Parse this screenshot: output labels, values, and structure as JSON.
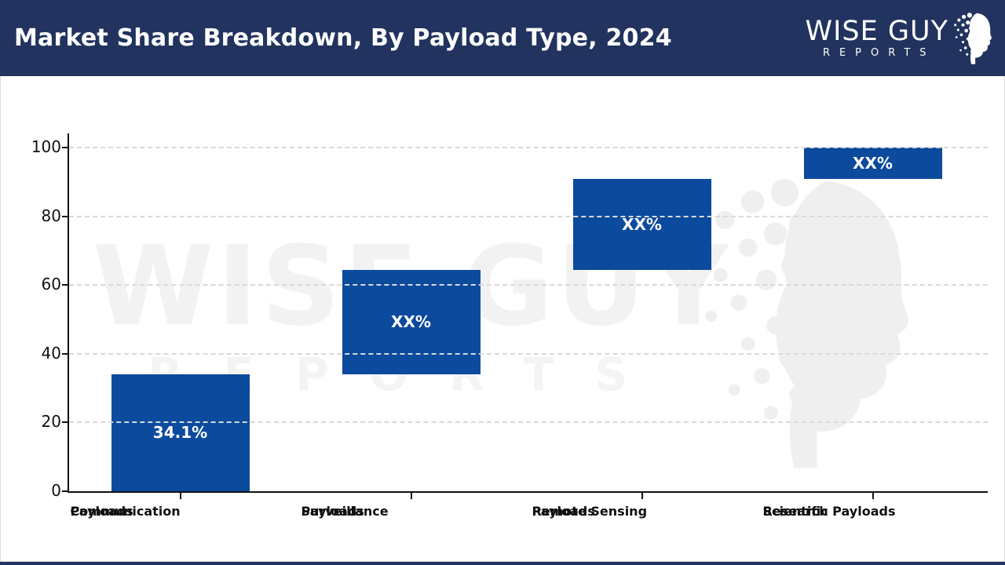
{
  "header": {
    "title": "Market Share Breakdown, By Payload Type, 2024",
    "bg_color": "#21335e",
    "logo": {
      "line1": "WISE GUY",
      "line2": "REPORTS",
      "head_icon": "dotted-face-profile"
    }
  },
  "watermark": {
    "line1": "WISE GUY",
    "line2": "REPORTS"
  },
  "chart_data": {
    "type": "bar",
    "variant": "floating-waterfall",
    "title": "Market Share Breakdown, By Payload Type, 2024",
    "categories": [
      "Communication Payloads",
      "Surveillance Payloads",
      "Remote Sensing Payloads",
      "Scientific Research Payloads"
    ],
    "category_lines": [
      [
        "Communication",
        "Payloads"
      ],
      [
        "Surveillance",
        "Payloads"
      ],
      [
        "Remote Sensing",
        "Payloads"
      ],
      [
        "Scientific",
        "Research Payloads"
      ]
    ],
    "segments": [
      {
        "category": "Communication Payloads",
        "start": 0,
        "end": 34.1,
        "label": "34.1%"
      },
      {
        "category": "Surveillance Payloads",
        "start": 34.1,
        "end": 64.3,
        "label": "XX%"
      },
      {
        "category": "Remote Sensing Payloads",
        "start": 64.3,
        "end": 90.8,
        "label": "XX%"
      },
      {
        "category": "Scientific Research Payloads",
        "start": 90.8,
        "end": 100,
        "label": "XX%"
      }
    ],
    "ylim": [
      0,
      100
    ],
    "yticks": [
      0,
      20,
      40,
      60,
      80,
      100
    ],
    "grid": {
      "axis": "y",
      "style": "dashed",
      "color": "#d9d9d9",
      "drawn_above_bars": true
    },
    "bar_color": "#0c4a9d",
    "bar_label_color": "#ffffff",
    "axis_color": "#111111",
    "legend": "none"
  },
  "footer": {
    "bg_color": "#21335e"
  }
}
